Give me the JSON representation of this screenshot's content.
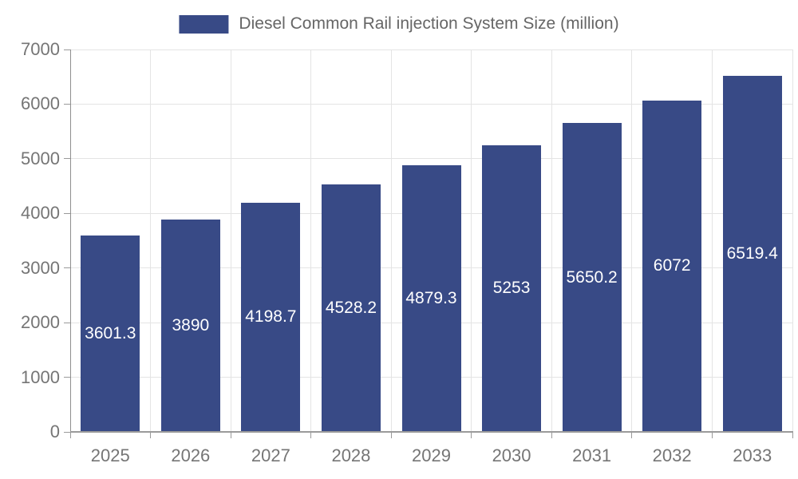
{
  "chart_data": {
    "type": "bar",
    "title": "",
    "legend": "Diesel Common Rail injection System Size (million)",
    "legend_position": "top",
    "categories": [
      "2025",
      "2026",
      "2027",
      "2028",
      "2029",
      "2030",
      "2031",
      "2032",
      "2033"
    ],
    "values": [
      3601.3,
      3890,
      4198.7,
      4528.2,
      4879.3,
      5253,
      5650.2,
      6072,
      6519.4
    ],
    "value_labels": [
      "3601.3",
      "3890",
      "4198.7",
      "4528.2",
      "4879.3",
      "5253",
      "5650.2",
      "6072",
      "6519.4"
    ],
    "xlabel": "",
    "ylabel": "",
    "ylim": [
      0,
      7000
    ],
    "yticks": [
      0,
      1000,
      2000,
      3000,
      4000,
      5000,
      6000,
      7000
    ],
    "grid": true,
    "colors": {
      "bar": "#384a86",
      "value_label": "#ffffff",
      "axis_label": "#757575",
      "legend_text": "#666666",
      "gridline": "#e4e4e4",
      "axis_line": "#9a9a9a"
    }
  }
}
